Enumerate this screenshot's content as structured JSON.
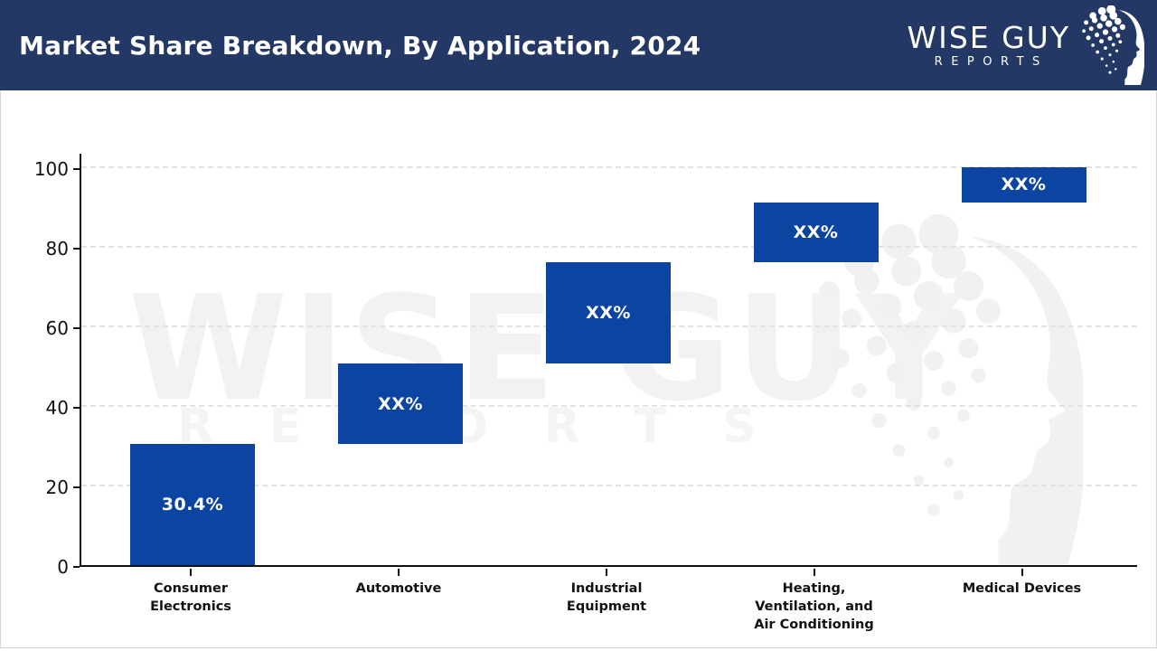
{
  "header": {
    "background": "#233864",
    "title": "Market Share Breakdown, By Application, 2024",
    "logo": {
      "line1": "WISE GUY",
      "line2": "REPORTS"
    }
  },
  "watermark": {
    "line1": "WISE GUY",
    "line2": "REPORTS"
  },
  "chart_data": {
    "type": "bar",
    "subtype": "waterfall",
    "title": "Market Share Breakdown, By Application, 2024",
    "categories": [
      "Consumer\nElectronics",
      "Automotive",
      "Industrial\nEquipment",
      "Heating,\nVentilation, and\nAir Conditioning",
      "Medical Devices"
    ],
    "segments": [
      {
        "category": "Consumer Electronics",
        "start": 0,
        "end": 30.4,
        "label": "30.4%"
      },
      {
        "category": "Automotive",
        "start": 30.4,
        "end": 50.6,
        "label": "XX%"
      },
      {
        "category": "Industrial Equipment",
        "start": 50.6,
        "end": 76.1,
        "label": "XX%"
      },
      {
        "category": "Heating, Ventilation, and Air Conditioning",
        "start": 76.1,
        "end": 91.2,
        "label": "XX%"
      },
      {
        "category": "Medical Devices",
        "start": 91.2,
        "end": 100,
        "label": "XX%"
      }
    ],
    "y_ticks": [
      0,
      20,
      40,
      60,
      80,
      100
    ],
    "ylim": [
      0,
      100
    ],
    "xlabel": "",
    "ylabel": "",
    "bar_color": "#0b45a1",
    "bar_label_color": "#ffffff",
    "grid": {
      "axis": "y",
      "style": "dashed",
      "color": "#e2e2e4"
    },
    "legend": "none"
  }
}
